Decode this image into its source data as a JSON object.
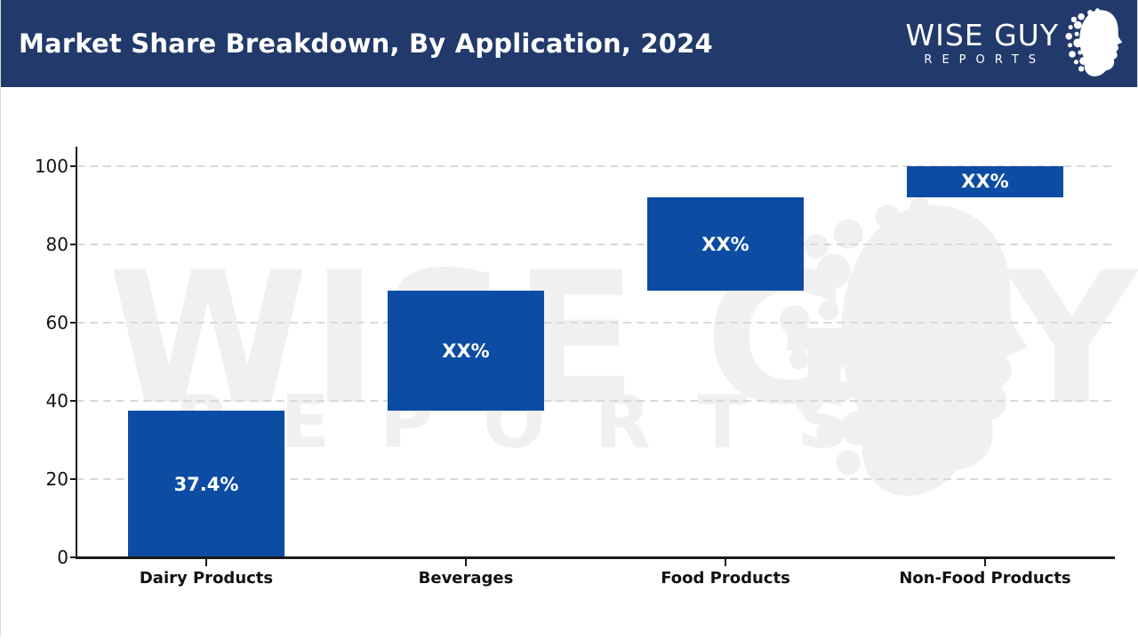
{
  "page": {
    "title": "Market Share Breakdown, By Application, 2024"
  },
  "brand": {
    "logo_line1": "WISE GUY",
    "logo_line2": "REPORTS",
    "face_icon": "dotted-face-profile"
  },
  "watermark": {
    "line1": "WISE GUY",
    "line2": "REPORTS"
  },
  "colors": {
    "header_bg": "#213a6b",
    "bar": "#0c4ca3",
    "bar_label": "#ffffff",
    "axis": "#1a1a1a",
    "grid": "#d9d9d9",
    "tick_label": "#111111",
    "watermark": "#f0f0f2",
    "card_border": "#d9d9d9",
    "background": "#ffffff"
  },
  "chart_data": {
    "type": "bar",
    "subtype": "waterfall",
    "title": "Market Share Breakdown, By Application, 2024",
    "xlabel": "",
    "ylabel": "",
    "categories": [
      "Dairy Products",
      "Beverages",
      "Food Products",
      "Non-Food Products"
    ],
    "series": [
      {
        "name": "Market Share (%)",
        "segments": [
          {
            "category": "Dairy Products",
            "start": 0,
            "end": 37.4,
            "label": "37.4%"
          },
          {
            "category": "Beverages",
            "start": 37.4,
            "end": 68.1,
            "label": "XX%"
          },
          {
            "category": "Food Products",
            "start": 68.1,
            "end": 92.1,
            "label": "XX%"
          },
          {
            "category": "Non-Food Products",
            "start": 92.1,
            "end": 100,
            "label": "XX%"
          }
        ]
      }
    ],
    "yticks": [
      0,
      20,
      40,
      60,
      80,
      100
    ],
    "ylim": [
      0,
      105
    ],
    "grid": "horizontal-dashed",
    "legend": "none"
  }
}
